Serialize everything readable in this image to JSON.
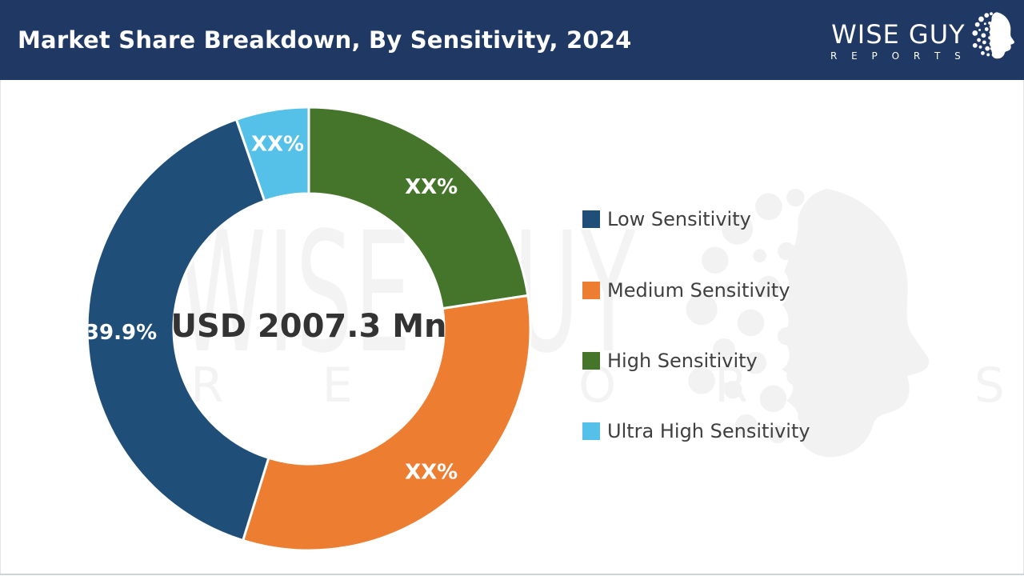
{
  "header": {
    "title": "Market Share Breakdown, By Sensitivity, 2024",
    "logo": {
      "line1": "WISE GUY",
      "line2": "R E P O R T S"
    }
  },
  "watermark": {
    "line1": "WISE GUY",
    "line2": "R E P O R T S"
  },
  "chart_data": {
    "type": "donut",
    "title": "Market Share Breakdown, By Sensitivity, 2024",
    "center_label": "USD 2007.3 Mn",
    "start_angle_deg": 0,
    "direction": "clockwise",
    "legend_position": "right",
    "draw_order": [
      "High Sensitivity",
      "Medium Sensitivity",
      "Low Sensitivity",
      "Ultra High Sensitivity"
    ],
    "segments": [
      {
        "name": "Low Sensitivity",
        "color": "#1F4E79",
        "label": "39.9%",
        "value_pct": 39.9,
        "value_shown": true
      },
      {
        "name": "Medium Sensitivity",
        "color": "#ED7D31",
        "label": "XX%",
        "value_pct": 32.2,
        "value_shown": false
      },
      {
        "name": "High Sensitivity",
        "color": "#45752B",
        "label": "XX%",
        "value_pct": 22.6,
        "value_shown": false
      },
      {
        "name": "Ultra High Sensitivity",
        "color": "#56C1E8",
        "label": "XX%",
        "value_pct": 5.3,
        "value_shown": false
      }
    ]
  },
  "legend": {
    "items": [
      {
        "label": "Low Sensitivity",
        "color": "#1F4E79"
      },
      {
        "label": "Medium Sensitivity",
        "color": "#ED7D31"
      },
      {
        "label": "High Sensitivity",
        "color": "#45752B"
      },
      {
        "label": "Ultra High Sensitivity",
        "color": "#56C1E8"
      }
    ]
  }
}
